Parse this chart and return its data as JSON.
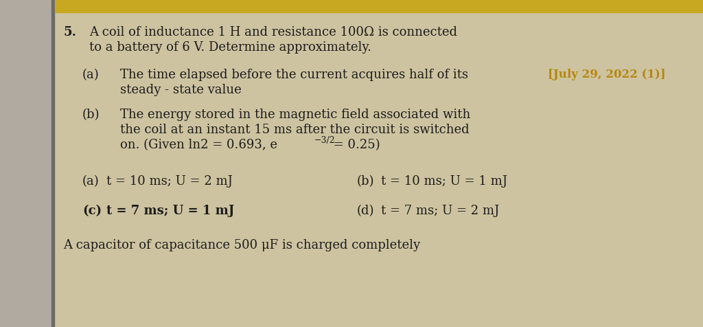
{
  "background_color": "#cdc3a0",
  "top_bar_color": "#c8a820",
  "question_number": "5.",
  "title_line1": "A coil of inductance 1 H and resistance 100Ω is connected",
  "title_line2": "to a battery of 6 V. Determine approximately.",
  "date_tag": "[July 29, 2022 (1)]",
  "date_tag_color": "#b8860b",
  "part_a_label": "(a)",
  "part_a_text_line1": "The time elapsed before the current acquires half of its",
  "part_a_text_line2": "steady - state value",
  "part_b_label": "(b)",
  "part_b_text_line1": "The energy stored in the magnetic field associated with",
  "part_b_text_line2": "the coil at an instant 15 ms after the circuit is switched",
  "part_b_text_line3_pre": "on. (Given ln2 = 0.693, e",
  "part_b_exp": "−3/2",
  "part_b_text_line3_post": " = 0.25)",
  "opt_a_label": "(a)",
  "opt_a_text": "t = 10 ms; U = 2 mJ",
  "opt_b_label": "(b)",
  "opt_b_text": "t = 10 ms; U = 1 mJ",
  "opt_c_label": "(c)",
  "opt_c_text": "t = 7 ms; U = 1 mJ",
  "opt_d_label": "(d)",
  "opt_d_text": "t = 7 ms; U = 2 mJ",
  "bottom_text": "A capacitor of capacitance 500 μF is charged completely",
  "left_bar_color": "#6b6b6b",
  "font_color": "#1c1c1c",
  "page_bg_left": "#b0aaa0",
  "page_bg_right": "#d8d0b8"
}
